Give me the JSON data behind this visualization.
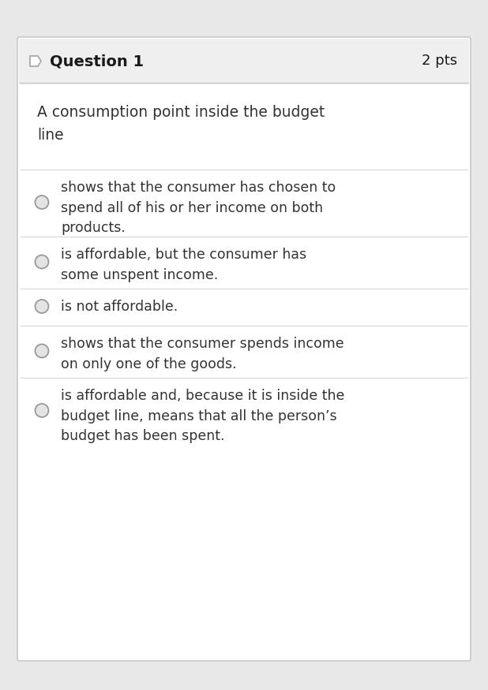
{
  "title": "Question 1",
  "pts": "2 pts",
  "question_text": "A consumption point inside the budget\nline",
  "options": [
    "shows that the consumer has chosen to\nspend all of his or her income on both\nproducts.",
    "is affordable, but the consumer has\nsome unspent income.",
    "is not affordable.",
    "shows that the consumer spends income\non only one of the goods.",
    "is affordable and, because it is inside the\nbudget line, means that all the person’s\nbudget has been spent."
  ],
  "bg_color": "#e8e8e8",
  "card_bg": "#ffffff",
  "header_bg": "#efefef",
  "border_color": "#c8c8c8",
  "title_color": "#1a1a1a",
  "text_color": "#333333",
  "radio_color": "#999999",
  "radio_fill": "#e4e4e4",
  "separator_color": "#d8d8d8",
  "title_fontsize": 14,
  "pts_fontsize": 13,
  "question_fontsize": 13.5,
  "option_fontsize": 12.5
}
